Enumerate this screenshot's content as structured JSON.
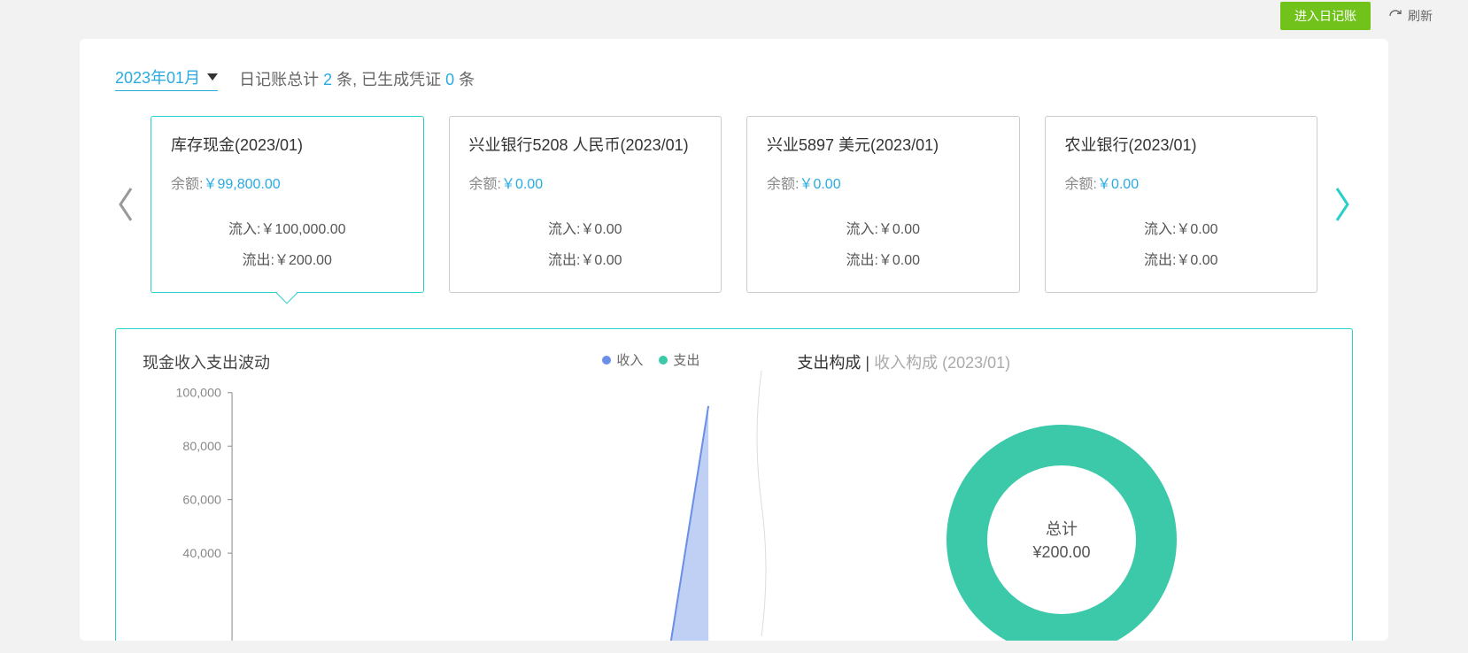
{
  "topbar": {
    "enter_journal": "进入日记账",
    "refresh": "刷新"
  },
  "header": {
    "date": "2023年01月",
    "summary_prefix": "日记账总计 ",
    "journal_count": "2",
    "summary_mid": " 条, 已生成凭证 ",
    "voucher_count": "0",
    "summary_suffix": " 条"
  },
  "accounts": [
    {
      "title": "库存现金(2023/01)",
      "balance_label": "余额:",
      "balance_value": "￥99,800.00",
      "inflow_label": "流入:",
      "inflow_value": "￥100,000.00",
      "outflow_label": "流出:",
      "outflow_value": "￥200.00",
      "active": true
    },
    {
      "title": "兴业银行5208 人民币(2023/01)",
      "balance_label": "余额:",
      "balance_value": "￥0.00",
      "inflow_label": "流入:",
      "inflow_value": "￥0.00",
      "outflow_label": "流出:",
      "outflow_value": "￥0.00",
      "active": false
    },
    {
      "title": "兴业5897 美元(2023/01)",
      "balance_label": "余额:",
      "balance_value": "￥0.00",
      "inflow_label": "流入:",
      "inflow_value": "￥0.00",
      "outflow_label": "流出:",
      "outflow_value": "￥0.00",
      "active": false
    },
    {
      "title": "农业银行(2023/01)",
      "balance_label": "余额:",
      "balance_value": "￥0.00",
      "inflow_label": "流入:",
      "inflow_value": "￥0.00",
      "outflow_label": "流出:",
      "outflow_value": "￥0.00",
      "active": false
    }
  ],
  "line_chart": {
    "title": "现金收入支出波动",
    "legend_income": "收入",
    "legend_expense": "支出",
    "income_color": "#6a8fe8",
    "expense_color": "#3bc9a9",
    "y_ticks": [
      "100,000",
      "80,000",
      "60,000",
      "40,000"
    ],
    "ylim": [
      0,
      100000
    ],
    "axis_color": "#888",
    "tick_fontsize": 14,
    "area_fill": "#a9c0f0",
    "line_width": 2
  },
  "donut_chart": {
    "tab_expense": "支出构成",
    "tab_income": "收入构成",
    "period": "(2023/01)",
    "center_label": "总计",
    "center_value": "¥200.00",
    "ring_color": "#3bc9a9",
    "ring_thickness": 46,
    "outer_r": 130,
    "inner_r": 84,
    "bg": "#ffffff"
  },
  "colors": {
    "accent_blue": "#29abe2",
    "accent_teal": "#29d0c8",
    "green_btn": "#71c21b"
  }
}
